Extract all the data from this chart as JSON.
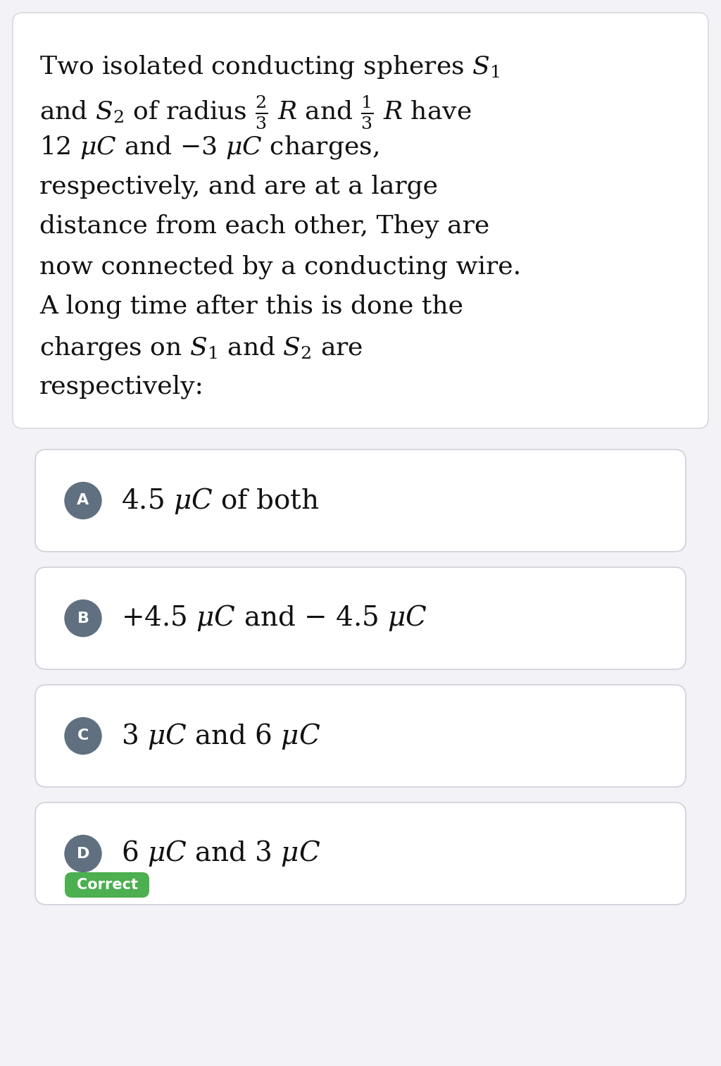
{
  "bg_color": "#f2f2f7",
  "card_bg": "#ffffff",
  "question_bg": "#ffffff",
  "question_text_lines": [
    "Two isolated conducting spheres $S_1$",
    "and $S_2$ of radius $\\frac{2}{3}$ $R$ and $\\frac{1}{3}$ $R$ have",
    "12 $\\mu C$ and $-3$ $\\mu C$ charges,",
    "respectively, and are at a large",
    "distance from each other, They are",
    "now connected by a conducting wire.",
    "A long time after this is done the",
    "charges on $S_1$ and $S_2$ are",
    "respectively:"
  ],
  "options": [
    {
      "label": "A",
      "text": "$4.5\\ \\mu C$ of both",
      "correct": false
    },
    {
      "label": "B",
      "text": "$+4.5\\ \\mu C$ and $-\\ 4.5\\ \\mu C$",
      "correct": false
    },
    {
      "label": "C",
      "text": "$3\\ \\mu C$ and $6\\ \\mu C$",
      "correct": false
    },
    {
      "label": "D",
      "text": "$6\\ \\mu C$ and $3\\ \\mu C$",
      "correct": true
    }
  ],
  "option_circle_color": "#607080",
  "correct_badge_color": "#4caf50",
  "correct_badge_text": "Correct",
  "text_color": "#111111",
  "font_size_question": 26,
  "font_size_option": 28,
  "circle_letter_fontsize": 16
}
